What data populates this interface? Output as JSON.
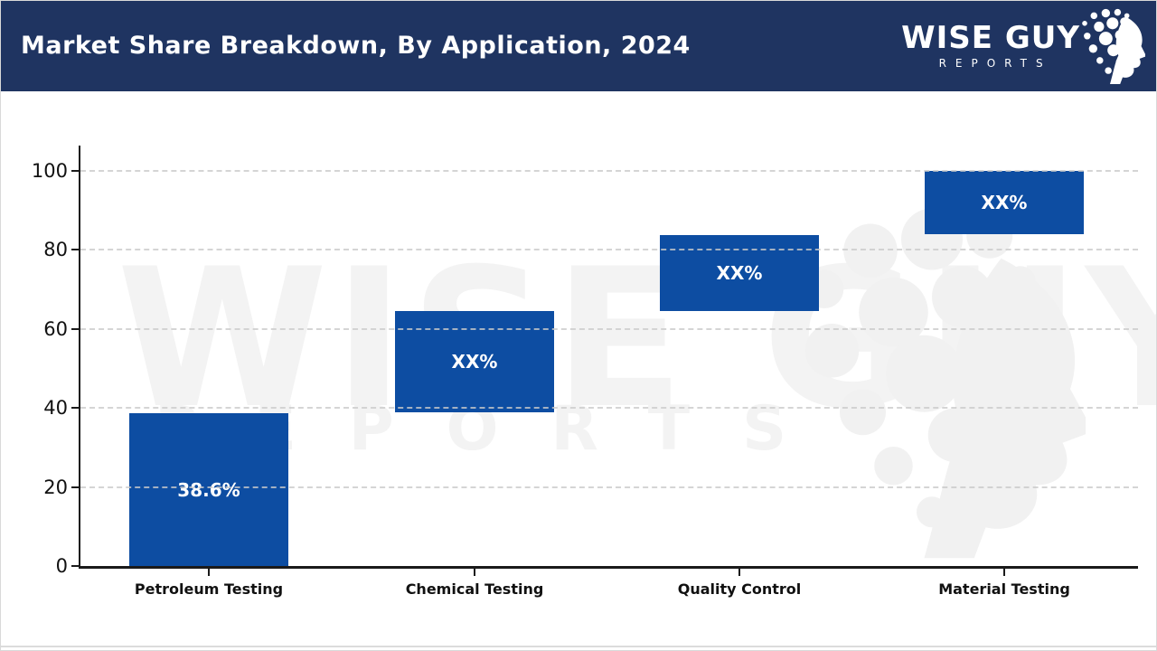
{
  "header": {
    "title": "Market Share Breakdown, By Application, 2024",
    "logo": {
      "line1": "WISE GUY",
      "line2": "REPORTS"
    }
  },
  "watermark": {
    "line1": "WISE GUY",
    "line2": "REPORTS"
  },
  "chart_data": {
    "type": "bar",
    "subtype": "floating-waterfall",
    "title": "Market Share Breakdown, By Application, 2024",
    "categories": [
      "Petroleum Testing",
      "Chemical Testing",
      "Quality Control",
      "Material Testing"
    ],
    "series": [
      {
        "name": "Market Share",
        "segments": [
          {
            "from": 0,
            "to": 38.6,
            "label": "38.6%"
          },
          {
            "from": 38.9,
            "to": 64.5,
            "label": "XX%"
          },
          {
            "from": 64.5,
            "to": 83.7,
            "label": "XX%"
          },
          {
            "from": 83.9,
            "to": 100,
            "label": "XX%"
          }
        ]
      }
    ],
    "ylim": [
      0,
      100
    ],
    "yticks": [
      "0",
      "20",
      "40",
      "60",
      "80",
      "100"
    ],
    "grid": "horizontal-dashed",
    "legend": "none",
    "colors": {
      "bar": "#0d4da2",
      "bar_label": "#ffffff",
      "grid": "#cbcbcb",
      "axis": "#1a1a1a",
      "header_bg": "#1f3461",
      "watermark": "#f3f3f3"
    }
  }
}
